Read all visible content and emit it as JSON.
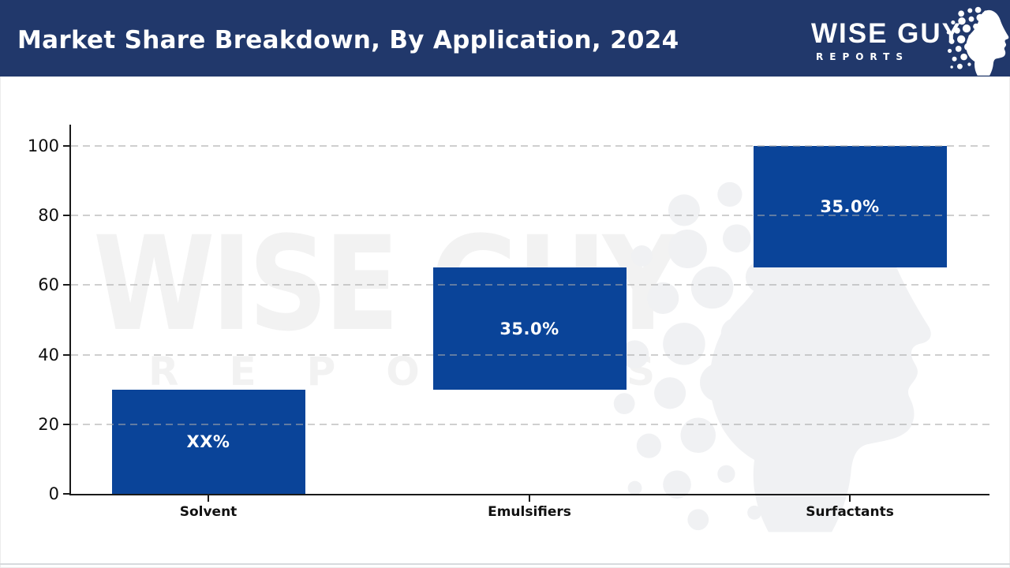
{
  "header": {
    "title": "Market Share Breakdown, By Application, 2024",
    "brand": {
      "name_top": "WISE GUY",
      "name_bottom": "REPORTS"
    },
    "colors": {
      "bg": "#21386b",
      "text": "#ffffff"
    }
  },
  "watermark": {
    "text_top": "WISE GUY",
    "text_bottom": "REPORTS"
  },
  "chart_data": {
    "type": "bar",
    "variant": "stepped-waterfall",
    "title": "Market Share Breakdown, By Application, 2024",
    "categories": [
      "Solvent",
      "Emulsifiers",
      "Surfactants"
    ],
    "segments": [
      {
        "category": "Solvent",
        "start": 0,
        "end": 30,
        "label": "XX%"
      },
      {
        "category": "Emulsifiers",
        "start": 30,
        "end": 65,
        "label": "35.0%"
      },
      {
        "category": "Surfactants",
        "start": 65,
        "end": 100,
        "label": "35.0%"
      }
    ],
    "bar_labels": [
      "XX%",
      "35.0%",
      "35.0%"
    ],
    "yticks": [
      0,
      20,
      40,
      60,
      80,
      100
    ],
    "ylim": [
      0,
      105
    ],
    "xlabel": "",
    "ylabel": "",
    "legend": false,
    "grid": "horizontal-dashed",
    "colors": {
      "bar": "#0a4499",
      "axis": "#1a1a1a",
      "gridline": "#d0d0d0",
      "bar_label": "#ffffff",
      "tick_label": "#0d0d0d"
    }
  },
  "footer": {
    "rule_color": "#d7dadd"
  }
}
